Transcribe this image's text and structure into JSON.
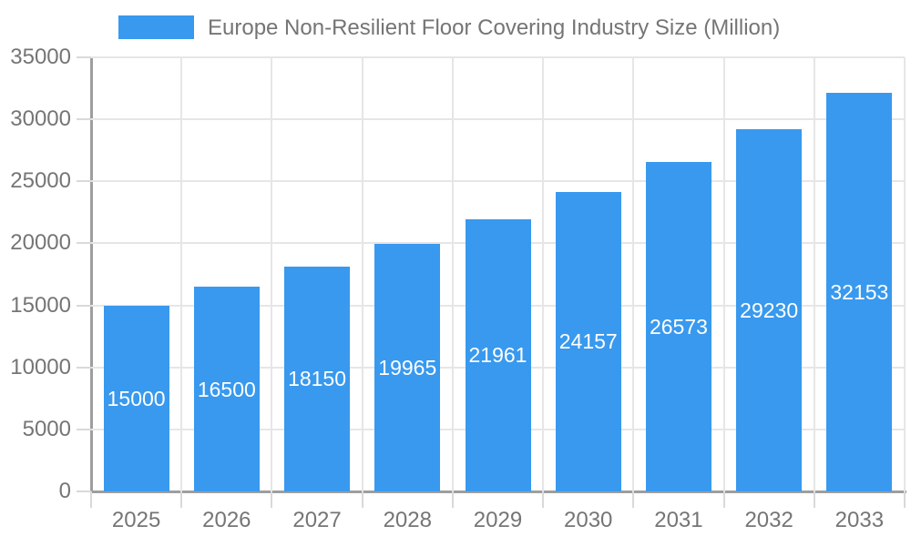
{
  "legend": {
    "label": "Europe Non-Resilient Floor Covering Industry Size (Million)"
  },
  "chart_data": {
    "type": "bar",
    "title": "Europe Non-Resilient Floor Covering Industry Size (Million)",
    "series_name": "Europe Non-Resilient Floor Covering Industry Size (Million)",
    "categories": [
      "2025",
      "2026",
      "2027",
      "2028",
      "2029",
      "2030",
      "2031",
      "2032",
      "2033"
    ],
    "values": [
      15000,
      16500,
      18150,
      19965,
      21961,
      24157,
      26573,
      29230,
      32153
    ],
    "value_labels": [
      "15000",
      "16500",
      "18150",
      "19965",
      "21961",
      "24157",
      "26573",
      "29230",
      "32153"
    ],
    "xlabel": "",
    "ylabel": "",
    "ylim": [
      0,
      35000
    ],
    "ytick_step": 5000,
    "ytick_labels": [
      "0",
      "5000",
      "10000",
      "15000",
      "20000",
      "25000",
      "30000",
      "35000"
    ],
    "grid": true,
    "legend_position": "top",
    "colors": {
      "bar": "#3899EE",
      "value_label": "#ffffff",
      "axis_text": "#757575",
      "gridline": "#e6e6e6",
      "axis_line": "#9e9e9e",
      "tick": "#d9d9d9",
      "background": "#ffffff"
    }
  }
}
